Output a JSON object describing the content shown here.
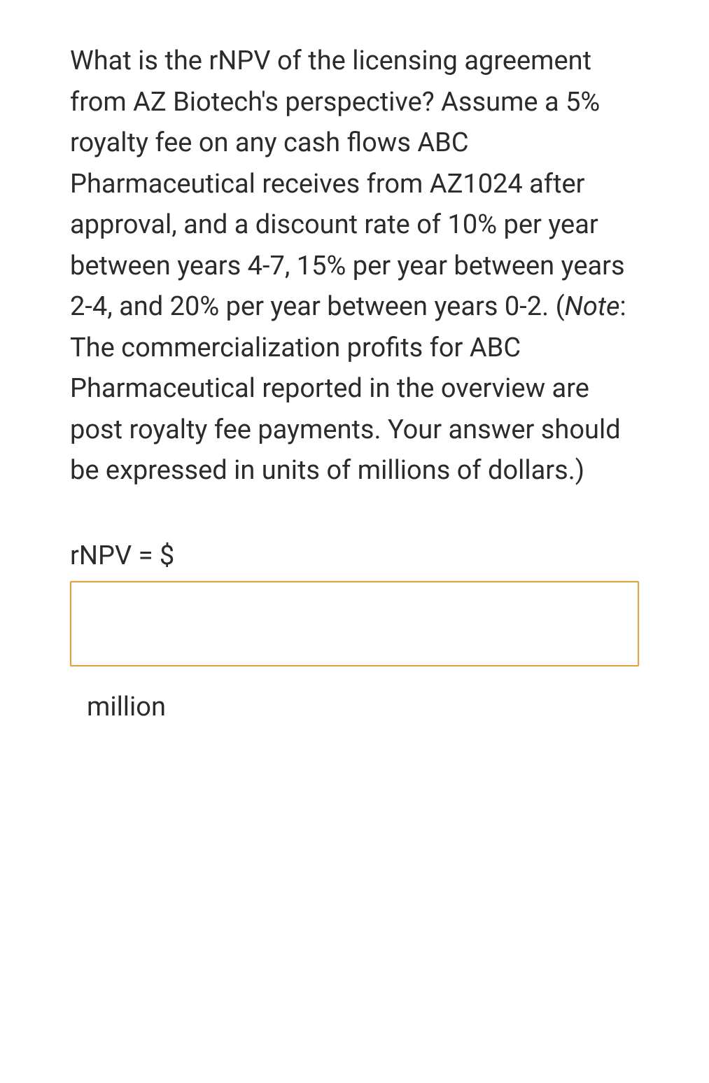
{
  "question": {
    "text_part1": "What is the rNPV of the licensing agreement from AZ Biotech's perspective? Assume a 5% royalty fee on any cash flows ABC Pharmaceutical receives from AZ1024 after approval, and a discount rate of 10% per year between years 4-7, 15% per year between years 2-4, and 20% per year between years 0-2. (",
    "note_label": "Note",
    "text_part2": ": The commercialization profits for ABC Pharmaceutical reported in the overview are post royalty fee payments. Your answer should be expressed in units of millions of dollars.)"
  },
  "answer": {
    "label": "rNPV = $",
    "value": "",
    "unit": "million",
    "input_border_color": "#d9a441",
    "text_color": "#2b2b2b",
    "background_color": "#ffffff",
    "fontsize": 38
  }
}
